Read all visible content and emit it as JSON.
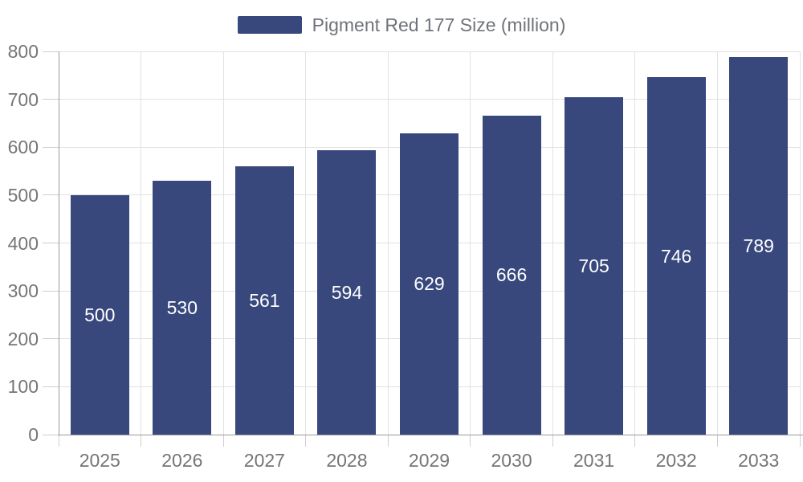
{
  "legend": {
    "label": "Pigment Red 177 Size (million)"
  },
  "chart_data": {
    "type": "bar",
    "title": "Pigment Red 177 Size (million)",
    "series_name": "Pigment Red 177 Size (million)",
    "categories": [
      "2025",
      "2026",
      "2027",
      "2028",
      "2029",
      "2030",
      "2031",
      "2032",
      "2033"
    ],
    "values": [
      500,
      530,
      561,
      594,
      629,
      666,
      705,
      746,
      789
    ],
    "xlabel": "",
    "ylabel": "",
    "ylim": [
      0,
      800
    ],
    "yticks": [
      0,
      100,
      200,
      300,
      400,
      500,
      600,
      700,
      800
    ],
    "grid": true,
    "legend_position": "top",
    "bar_labels_visible": true,
    "colors": {
      "bar": "#38487D",
      "bar_value_label": "#FFFFFF",
      "axis_text": "#757575",
      "legend_text": "#70737A",
      "gridline": "#E2E2E2",
      "axis_line": "#9A9A9A",
      "tick": "#CFCFCF",
      "background": "#FFFFFF"
    }
  }
}
